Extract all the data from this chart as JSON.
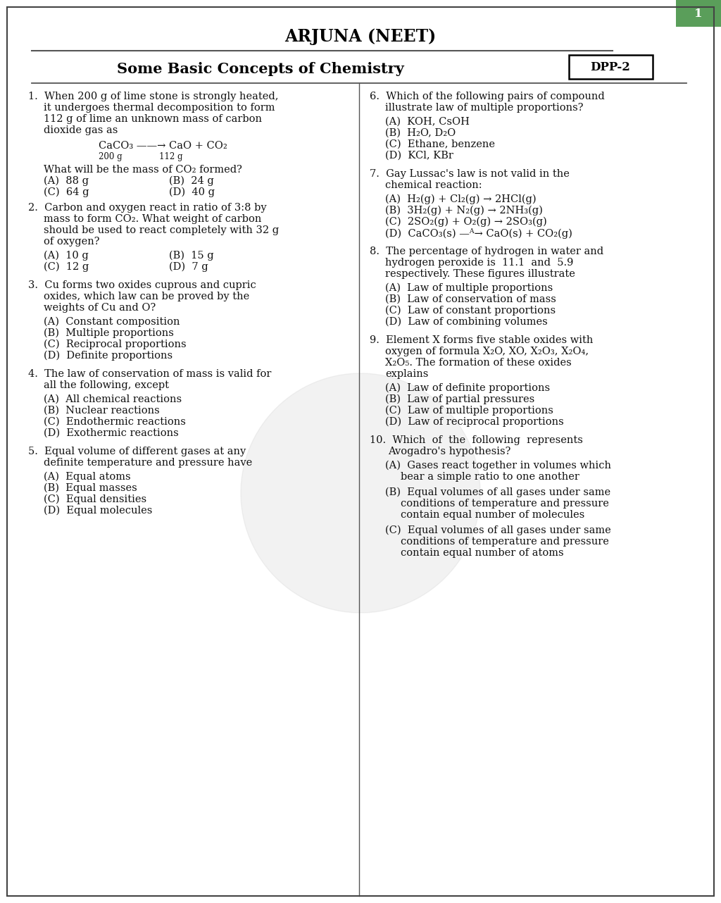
{
  "title": "ARJUNA (NEET)",
  "subtitle": "Some Basic Concepts of Chemistry",
  "dpp": "DPP-2",
  "page_num": "1",
  "bg_color": "#FFFFFF",
  "title_color": "#000000",
  "green_tab_color": "#5a9e5a",
  "line_color": "#555555",
  "font_family": "DejaVu Serif",
  "fs_title": 17,
  "fs_subtitle": 15,
  "fs_dpp": 12,
  "fs_body": 10.5,
  "fs_eq_sub": 8.5,
  "lh": 16,
  "lh_small": 14
}
